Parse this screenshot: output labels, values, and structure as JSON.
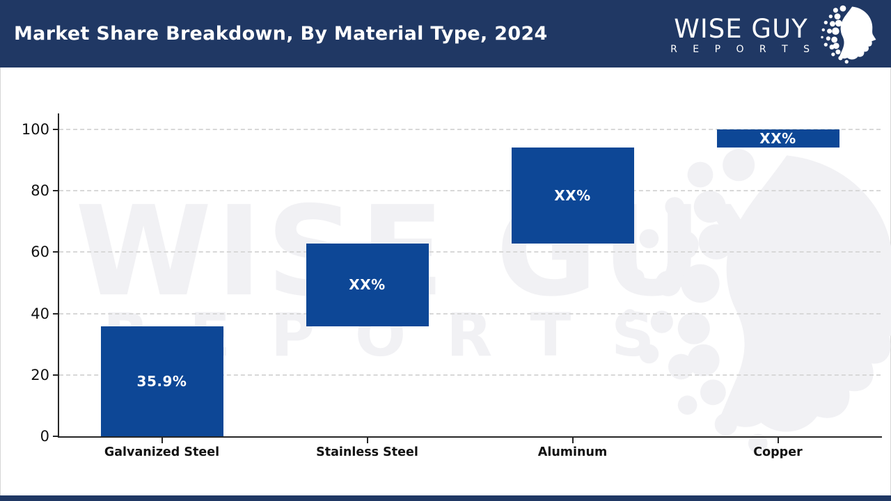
{
  "header": {
    "title": "Market Share Breakdown, By Material Type, 2024",
    "logo": {
      "line1": "WISE GUY",
      "line2": "REPORTS"
    }
  },
  "watermark": {
    "line1": "WISE GUY",
    "line2": "REPORTS"
  },
  "colors": {
    "header_bg": "#203864",
    "footer_bg": "#203864",
    "bar": "#0d4796",
    "gridline": "#d8d8d8",
    "axis": "#262626",
    "bar_label": "#ffffff",
    "watermark": "#f1f1f4"
  },
  "chart_data": {
    "type": "bar",
    "subtype": "waterfall",
    "title": "Market Share Breakdown, By Material Type, 2024",
    "xlabel": "",
    "ylabel": "",
    "categories": [
      "Galvanized Steel",
      "Stainless Steel",
      "Aluminum",
      "Copper"
    ],
    "segments": [
      {
        "category": "Galvanized Steel",
        "start": 0,
        "end": 35.9,
        "label": "35.9%"
      },
      {
        "category": "Stainless Steel",
        "start": 35.9,
        "end": 62.8,
        "label": "XX%"
      },
      {
        "category": "Aluminum",
        "start": 62.8,
        "end": 94.1,
        "label": "XX%"
      },
      {
        "category": "Copper",
        "start": 94.1,
        "end": 100,
        "label": "XX%"
      }
    ],
    "yticks": [
      0,
      20,
      40,
      60,
      80,
      100
    ],
    "ylim": [
      0,
      105.2
    ],
    "grid": "dashed-horizontal",
    "legend": "none"
  }
}
